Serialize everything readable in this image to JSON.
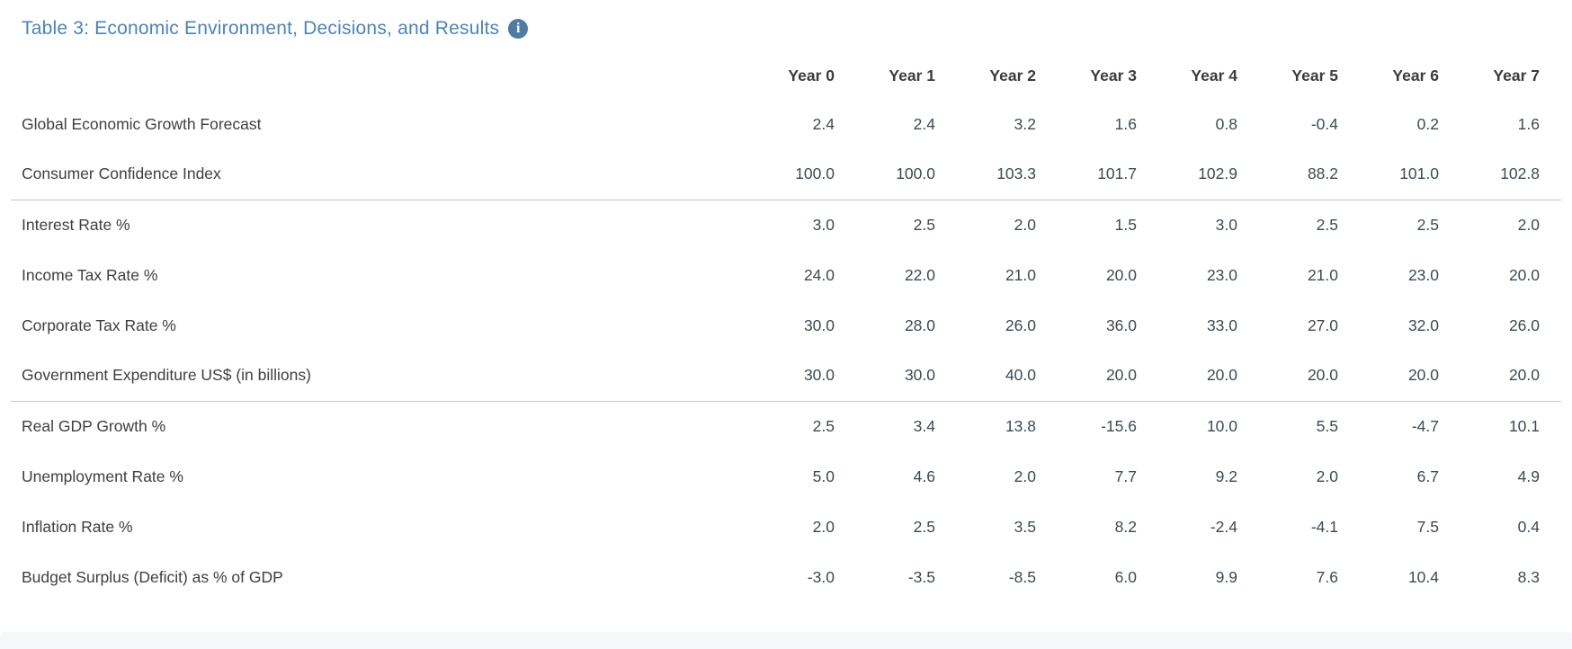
{
  "table": {
    "title": "Table 3: Economic Environment, Decisions, and Results",
    "info_icon": {
      "name": "info-circle-icon",
      "glyph": "i"
    },
    "columns": [
      "Year 0",
      "Year 1",
      "Year 2",
      "Year 3",
      "Year 4",
      "Year 5",
      "Year 6",
      "Year 7"
    ],
    "rows": [
      {
        "label": "Global Economic Growth Forecast",
        "section_start": false,
        "values": [
          "2.4",
          "2.4",
          "3.2",
          "1.6",
          "0.8",
          "-0.4",
          "0.2",
          "1.6"
        ]
      },
      {
        "label": "Consumer Confidence Index",
        "section_start": false,
        "values": [
          "100.0",
          "100.0",
          "103.3",
          "101.7",
          "102.9",
          "88.2",
          "101.0",
          "102.8"
        ]
      },
      {
        "label": "Interest Rate %",
        "section_start": true,
        "values": [
          "3.0",
          "2.5",
          "2.0",
          "1.5",
          "3.0",
          "2.5",
          "2.5",
          "2.0"
        ]
      },
      {
        "label": "Income Tax Rate %",
        "section_start": false,
        "values": [
          "24.0",
          "22.0",
          "21.0",
          "20.0",
          "23.0",
          "21.0",
          "23.0",
          "20.0"
        ]
      },
      {
        "label": "Corporate Tax Rate %",
        "section_start": false,
        "values": [
          "30.0",
          "28.0",
          "26.0",
          "36.0",
          "33.0",
          "27.0",
          "32.0",
          "26.0"
        ]
      },
      {
        "label": "Government Expenditure US$ (in billions)",
        "section_start": false,
        "values": [
          "30.0",
          "30.0",
          "40.0",
          "20.0",
          "20.0",
          "20.0",
          "20.0",
          "20.0"
        ]
      },
      {
        "label": "Real GDP Growth %",
        "section_start": true,
        "values": [
          "2.5",
          "3.4",
          "13.8",
          "-15.6",
          "10.0",
          "5.5",
          "-4.7",
          "10.1"
        ]
      },
      {
        "label": "Unemployment Rate %",
        "section_start": false,
        "values": [
          "5.0",
          "4.6",
          "2.0",
          "7.7",
          "9.2",
          "2.0",
          "6.7",
          "4.9"
        ]
      },
      {
        "label": "Inflation Rate %",
        "section_start": false,
        "values": [
          "2.0",
          "2.5",
          "3.5",
          "8.2",
          "-2.4",
          "-4.1",
          "7.5",
          "0.4"
        ]
      },
      {
        "label": "Budget Surplus (Deficit) as % of GDP",
        "section_start": false,
        "values": [
          "-3.0",
          "-3.5",
          "-8.5",
          "6.0",
          "9.9",
          "7.6",
          "10.4",
          "8.3"
        ]
      }
    ]
  },
  "colors": {
    "title": "#4a84bf",
    "info_icon_bg": "#4d7ba3",
    "header_text": "#3c3c3c",
    "label_text": "#3f3f3f",
    "value_text": "#3e4953",
    "section_divider": "#c9c9c9",
    "bottom_strip": "#f7f8fa"
  }
}
